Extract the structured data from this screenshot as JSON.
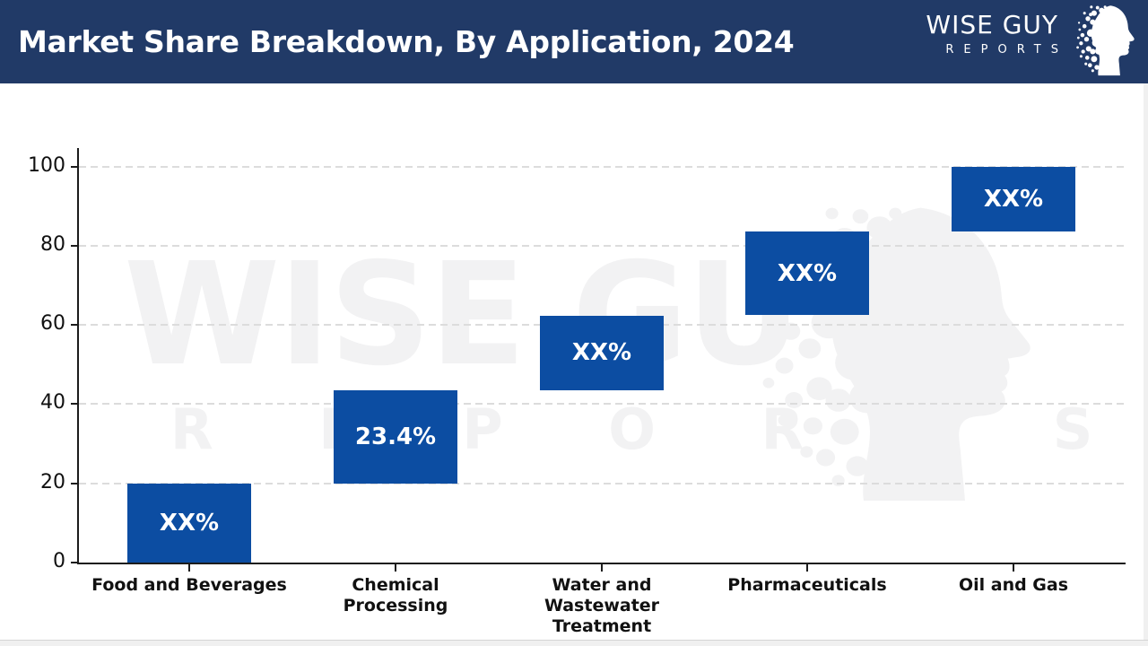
{
  "header": {
    "title": "Market Share Breakdown, By Application, 2024",
    "brand": {
      "line1": "WISE GUY",
      "line2": "REPORTS"
    }
  },
  "watermark": {
    "line1": "WISE GUY",
    "line2": "R E P O R T S"
  },
  "colors": {
    "header_bg": "#213a67",
    "bar": "#0c4da2",
    "bar_label": "#ffffff",
    "grid": "#dcdcdc",
    "axis": "#1c1c1c",
    "watermark": "#f2f2f3"
  },
  "chart_data": {
    "type": "bar",
    "subtype": "waterfall",
    "title": "Market Share Breakdown, By Application, 2024",
    "categories": [
      "Food and Beverages",
      "Chemical\nProcessing",
      "Water and\nWastewater\nTreatment",
      "Pharmaceuticals",
      "Oil and Gas"
    ],
    "series": [
      {
        "name": "Market Share",
        "segments": [
          {
            "start": 0,
            "end": 20,
            "label": "XX%"
          },
          {
            "start": 20,
            "end": 43.4,
            "label": "23.4%"
          },
          {
            "start": 43.4,
            "end": 62.4,
            "label": "XX%"
          },
          {
            "start": 62.4,
            "end": 83.6,
            "label": "XX%"
          },
          {
            "start": 83.6,
            "end": 100,
            "label": "XX%"
          }
        ]
      }
    ],
    "bar_labels": [
      "XX%",
      "23.4%",
      "XX%",
      "XX%",
      "XX%"
    ],
    "yticks": [
      0,
      20,
      40,
      60,
      80,
      100
    ],
    "ylim": [
      0,
      104.6
    ],
    "xlabel": "",
    "ylabel": "",
    "grid": "dashed-horizontal",
    "legend": "none"
  }
}
